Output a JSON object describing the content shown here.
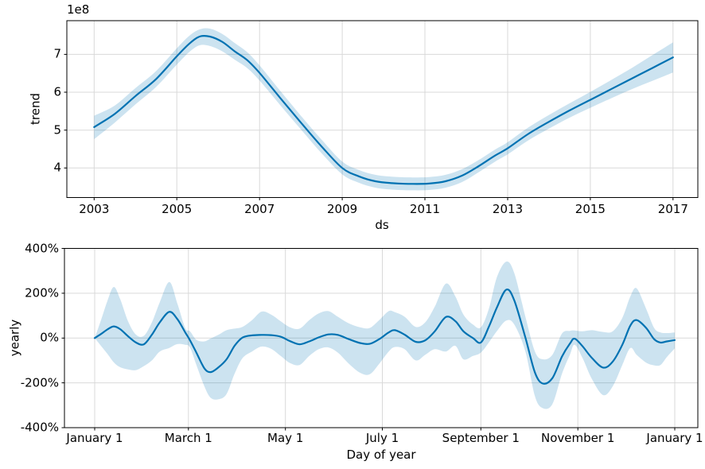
{
  "style": {
    "line_color": "#0072B2",
    "band_color": "rgba(0,114,178,0.2)",
    "grid_color": "#d9d9d9",
    "spine_color": "#000000",
    "text_color": "#000000"
  },
  "chart_data": [
    {
      "type": "line",
      "name": "trend",
      "xlabel": "ds",
      "ylabel": "trend",
      "offset_text": "1e8",
      "grid": true,
      "xlim": [
        2002.34,
        2017.6
      ],
      "ylim": [
        3.22,
        7.89
      ],
      "x_ticks": {
        "values": [
          2003,
          2005,
          2007,
          2009,
          2011,
          2013,
          2015,
          2017
        ],
        "labels": [
          "2003",
          "2005",
          "2007",
          "2009",
          "2011",
          "2013",
          "2015",
          "2017"
        ]
      },
      "y_ticks": {
        "values": [
          4,
          5,
          6,
          7
        ],
        "labels": [
          "4",
          "5",
          "6",
          "7"
        ]
      },
      "series": {
        "x": [
          2003.0,
          2003.5,
          2004.0,
          2004.5,
          2005.0,
          2005.3,
          2005.55,
          2005.8,
          2006.1,
          2006.4,
          2006.7,
          2007.0,
          2007.5,
          2008.0,
          2008.5,
          2009.0,
          2009.4,
          2009.8,
          2010.2,
          2010.7,
          2011.1,
          2011.5,
          2011.9,
          2012.3,
          2012.7,
          2013.0,
          2013.5,
          2014.0,
          2014.5,
          2015.0,
          2015.5,
          2016.0,
          2016.5,
          2017.0
        ],
        "y": [
          5.08,
          5.43,
          5.9,
          6.35,
          6.95,
          7.28,
          7.47,
          7.47,
          7.33,
          7.08,
          6.85,
          6.51,
          5.85,
          5.2,
          4.57,
          4.0,
          3.78,
          3.65,
          3.6,
          3.58,
          3.59,
          3.65,
          3.8,
          4.05,
          4.33,
          4.52,
          4.9,
          5.22,
          5.52,
          5.8,
          6.08,
          6.36,
          6.64,
          6.92
        ],
        "lower": [
          4.76,
          5.2,
          5.68,
          6.14,
          6.73,
          7.06,
          7.24,
          7.22,
          7.08,
          6.86,
          6.64,
          6.31,
          5.66,
          5.02,
          4.39,
          3.83,
          3.61,
          3.48,
          3.43,
          3.41,
          3.42,
          3.48,
          3.63,
          3.89,
          4.17,
          4.36,
          4.73,
          5.04,
          5.33,
          5.59,
          5.84,
          6.08,
          6.3,
          6.52
        ],
        "upper": [
          5.38,
          5.65,
          6.11,
          6.56,
          7.16,
          7.49,
          7.66,
          7.68,
          7.54,
          7.3,
          7.06,
          6.71,
          6.04,
          5.38,
          4.75,
          4.17,
          3.95,
          3.82,
          3.77,
          3.75,
          3.76,
          3.82,
          3.97,
          4.21,
          4.49,
          4.68,
          5.07,
          5.4,
          5.71,
          6.01,
          6.32,
          6.64,
          6.98,
          7.32
        ]
      }
    },
    {
      "type": "line",
      "name": "yearly",
      "xlabel": "Day of year",
      "ylabel": "yearly",
      "grid": true,
      "xlim": [
        -19,
        379.5
      ],
      "ylim": [
        -400,
        400
      ],
      "x_ticks": {
        "values": [
          0,
          59,
          120,
          181,
          243,
          304,
          365
        ],
        "labels": [
          "January 1",
          "March 1",
          "May 1",
          "July 1",
          "September 1",
          "November 1",
          "January 1"
        ]
      },
      "y_ticks": {
        "values": [
          400,
          200,
          0,
          -200,
          -400
        ],
        "labels": [
          "400%",
          "200%",
          "0%",
          "-200%",
          "-400%"
        ]
      },
      "series": {
        "x": [
          0,
          4,
          8,
          12,
          16,
          21,
          26,
          31,
          36,
          41,
          47,
          52,
          57,
          60,
          64,
          69,
          73,
          78,
          83,
          88,
          93,
          99,
          105,
          111,
          117,
          123,
          129,
          135,
          141,
          147,
          153,
          160,
          167,
          173,
          179,
          185,
          189,
          195,
          202,
          208,
          214,
          221,
          227,
          232,
          238,
          243,
          248,
          253,
          259,
          264,
          271,
          277,
          282,
          288,
          294,
          299,
          302,
          307,
          313,
          320,
          326,
          332,
          337,
          341,
          347,
          352,
          356,
          360,
          365
        ],
        "y": [
          0,
          18,
          38,
          52,
          40,
          8,
          -20,
          -28,
          15,
          70,
          117,
          85,
          25,
          -10,
          -65,
          -135,
          -152,
          -130,
          -95,
          -35,
          2,
          12,
          14,
          13,
          6,
          -14,
          -28,
          -15,
          3,
          16,
          14,
          -5,
          -22,
          -26,
          -5,
          25,
          35,
          15,
          -17,
          -10,
          30,
          94,
          75,
          30,
          0,
          -20,
          50,
          135,
          216,
          168,
          2,
          -154,
          -203,
          -179,
          -83,
          -25,
          -3,
          -37,
          -90,
          -132,
          -105,
          -30,
          55,
          80,
          45,
          -5,
          -20,
          -15,
          -9
        ],
        "lower": [
          0,
          -35,
          -70,
          -108,
          -130,
          -140,
          -143,
          -125,
          -100,
          -60,
          -44,
          -27,
          -30,
          -42,
          -120,
          -215,
          -267,
          -273,
          -250,
          -160,
          -90,
          -60,
          -38,
          -48,
          -80,
          -112,
          -120,
          -80,
          -50,
          -42,
          -65,
          -115,
          -155,
          -162,
          -115,
          -60,
          -40,
          -50,
          -100,
          -75,
          -50,
          -60,
          -35,
          -95,
          -80,
          -65,
          -20,
          30,
          78,
          60,
          -60,
          -260,
          -313,
          -295,
          -160,
          -75,
          -30,
          -90,
          -185,
          -255,
          -215,
          -120,
          -45,
          -75,
          -110,
          -122,
          -120,
          -85,
          -46
        ],
        "upper": [
          0,
          80,
          165,
          228,
          175,
          75,
          15,
          10,
          70,
          160,
          250,
          155,
          45,
          30,
          -8,
          -15,
          -2,
          15,
          35,
          42,
          50,
          80,
          118,
          105,
          75,
          48,
          42,
          80,
          110,
          120,
          95,
          65,
          48,
          45,
          80,
          120,
          115,
          95,
          50,
          70,
          140,
          243,
          185,
          105,
          60,
          48,
          130,
          270,
          341,
          290,
          95,
          -60,
          -95,
          -75,
          20,
          32,
          34,
          30,
          35,
          27,
          30,
          90,
          185,
          222,
          130,
          45,
          25,
          22,
          25
        ]
      }
    }
  ]
}
